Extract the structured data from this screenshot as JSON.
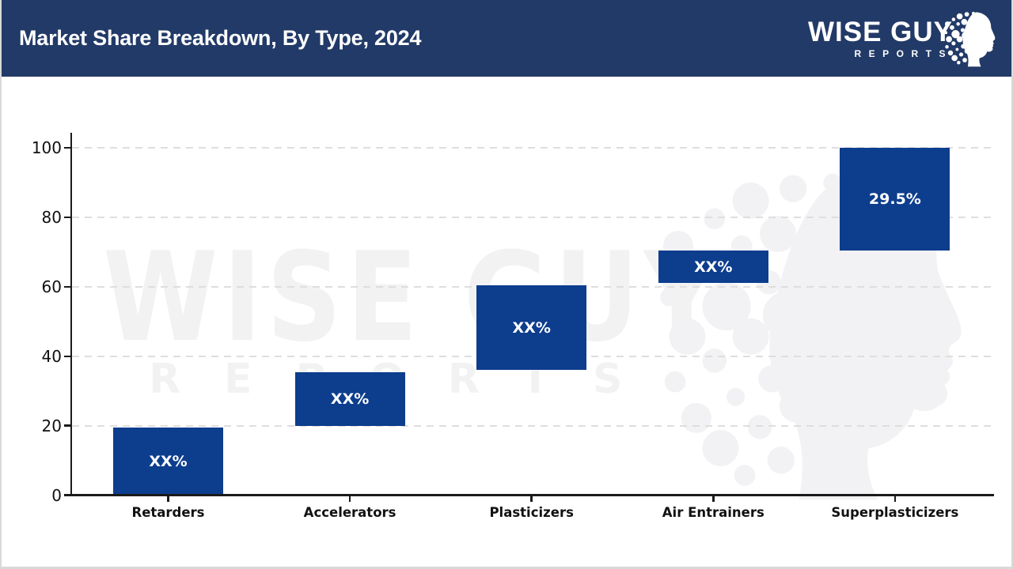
{
  "header": {
    "title": "Market Share Breakdown, By Type, 2024",
    "logo": {
      "line1": "WISE GUY",
      "line2": "REPORTS"
    }
  },
  "watermark": {
    "line1": "WISE GUY",
    "line2": "REPORTS"
  },
  "chart_data": {
    "type": "bar",
    "subtype": "floating-waterfall",
    "title": "Market Share Breakdown, By Type, 2024",
    "categories": [
      "Retarders",
      "Accelerators",
      "Plasticizers",
      "Air Entrainers",
      "Superplasticizers"
    ],
    "segments": [
      {
        "category": "Retarders",
        "start": 0,
        "end": 19.5,
        "value": 19.5,
        "label": "XX%"
      },
      {
        "category": "Accelerators",
        "start": 20,
        "end": 35.5,
        "value": 15.5,
        "label": "XX%"
      },
      {
        "category": "Plasticizers",
        "start": 36,
        "end": 60.5,
        "value": 24.5,
        "label": "XX%"
      },
      {
        "category": "Air Entrainers",
        "start": 61,
        "end": 70.5,
        "value": 9.5,
        "label": "XX%"
      },
      {
        "category": "Superplasticizers",
        "start": 70.5,
        "end": 100,
        "value": 29.5,
        "label": "29.5%"
      }
    ],
    "yticks": [
      0,
      20,
      40,
      60,
      80,
      100
    ],
    "ylim": [
      0,
      104
    ],
    "xlabel": "",
    "ylabel": "",
    "grid": "horizontal-dashed",
    "legend": "none",
    "bar_color": "#0d3d8d",
    "bar_label_color": "#ffffff"
  },
  "colors": {
    "header_bg": "#223a68",
    "bar": "#0d3d8d",
    "grid": "#dedede",
    "axis": "#1a1a1a",
    "watermark": "#f2f2f3",
    "page_bg": "#ffffff"
  }
}
